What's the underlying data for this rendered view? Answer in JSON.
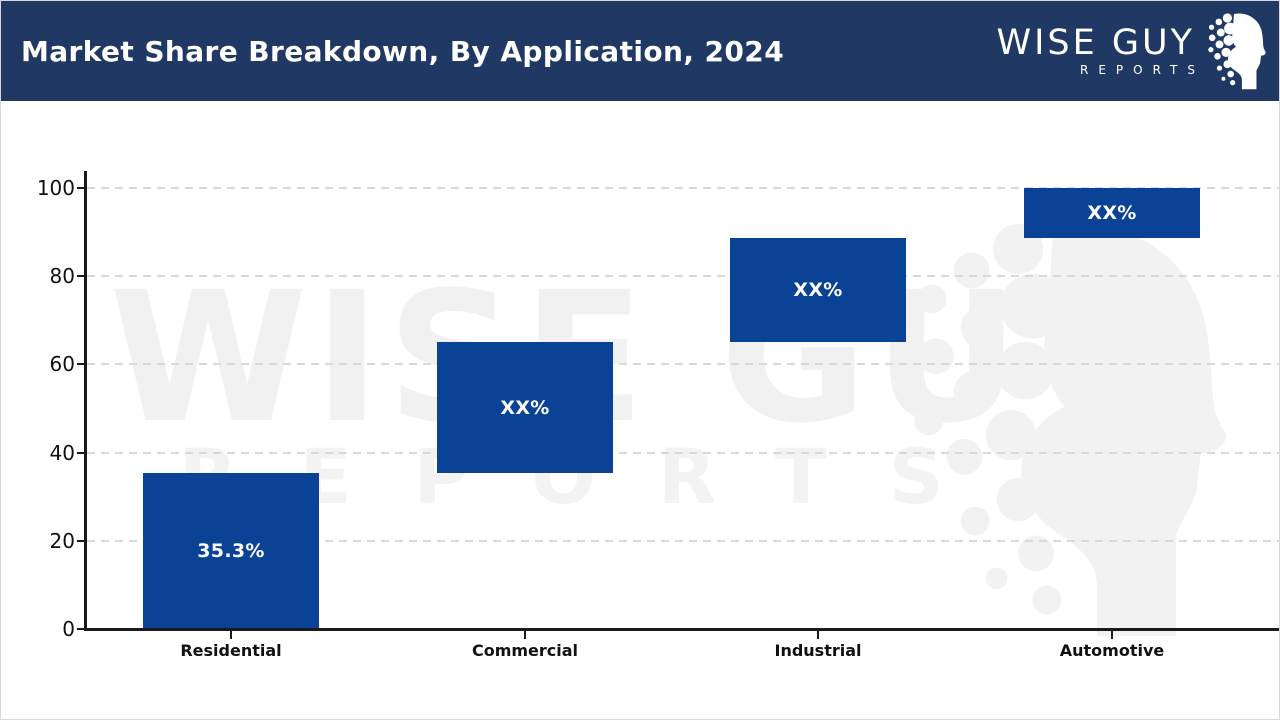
{
  "header": {
    "title": "Market Share Breakdown, By Application, 2024",
    "bg_color": "#203864",
    "logo": {
      "name": "WISE GUY",
      "sub": "REPORTS"
    }
  },
  "watermark": {
    "line1": "WISE GUY",
    "line2": "REPORTS"
  },
  "chart_data": {
    "type": "bar",
    "subtype": "floating-waterfall",
    "title": "Market Share Breakdown, By Application, 2024",
    "categories": [
      "Residential",
      "Commercial",
      "Industrial",
      "Automotive"
    ],
    "segments": [
      {
        "category": "Residential",
        "start": 0,
        "end": 35.3,
        "label": "35.3%"
      },
      {
        "category": "Commercial",
        "start": 35.3,
        "end": 65.0,
        "label": "XX%"
      },
      {
        "category": "Industrial",
        "start": 65.0,
        "end": 88.7,
        "label": "XX%"
      },
      {
        "category": "Automotive",
        "start": 88.7,
        "end": 100,
        "label": "XX%"
      }
    ],
    "yticks": [
      0,
      20,
      40,
      60,
      80,
      100
    ],
    "ylim": [
      0,
      105
    ],
    "bar_color": "#0a4296",
    "grid": "horizontal-dashed",
    "gridline_color": "#d9d9d9",
    "legend": "none"
  }
}
